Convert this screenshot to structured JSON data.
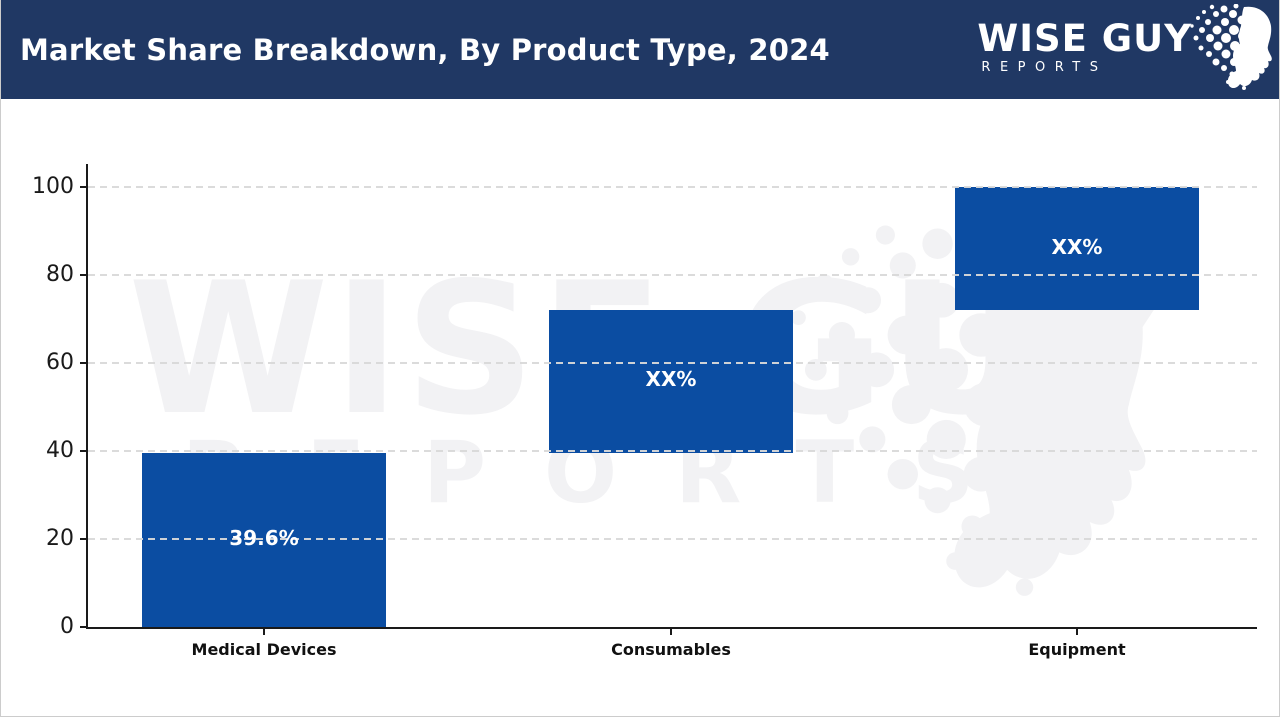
{
  "header": {
    "title": "Market Share Breakdown, By Product Type, 2024",
    "logo": {
      "line1": "WISE GUY",
      "line2": "REPORTS"
    }
  },
  "watermark": {
    "line1": "WISE GUY",
    "line2": "REPORTS"
  },
  "chart_data": {
    "type": "bar",
    "subtype": "stacked-waterfall-percentage",
    "title": "Market Share Breakdown, By Product Type, 2024",
    "categories": [
      "Medical Devices",
      "Consumables",
      "Equipment"
    ],
    "segments": [
      {
        "category": "Medical Devices",
        "start": 0,
        "end": 39.6,
        "label": "39.6%"
      },
      {
        "category": "Consumables",
        "start": 39.6,
        "end": 72,
        "label": "XX%"
      },
      {
        "category": "Equipment",
        "start": 72,
        "end": 100,
        "label": "XX%"
      }
    ],
    "xlabel": "",
    "ylabel": "",
    "ylim": [
      0,
      100
    ],
    "yticks": [
      0,
      20,
      40,
      60,
      80,
      100
    ],
    "grid": "dashed-horizontal-over-bars",
    "legend": "none"
  },
  "colors": {
    "header_bg": "#203864",
    "bar": "#0B4DA2",
    "bar_label": "#FFFFFF",
    "grid": "#D9D9D9",
    "axis": "#1A1A1A",
    "watermark": "#F2F2F4",
    "page_border": "#CCCCCC"
  }
}
